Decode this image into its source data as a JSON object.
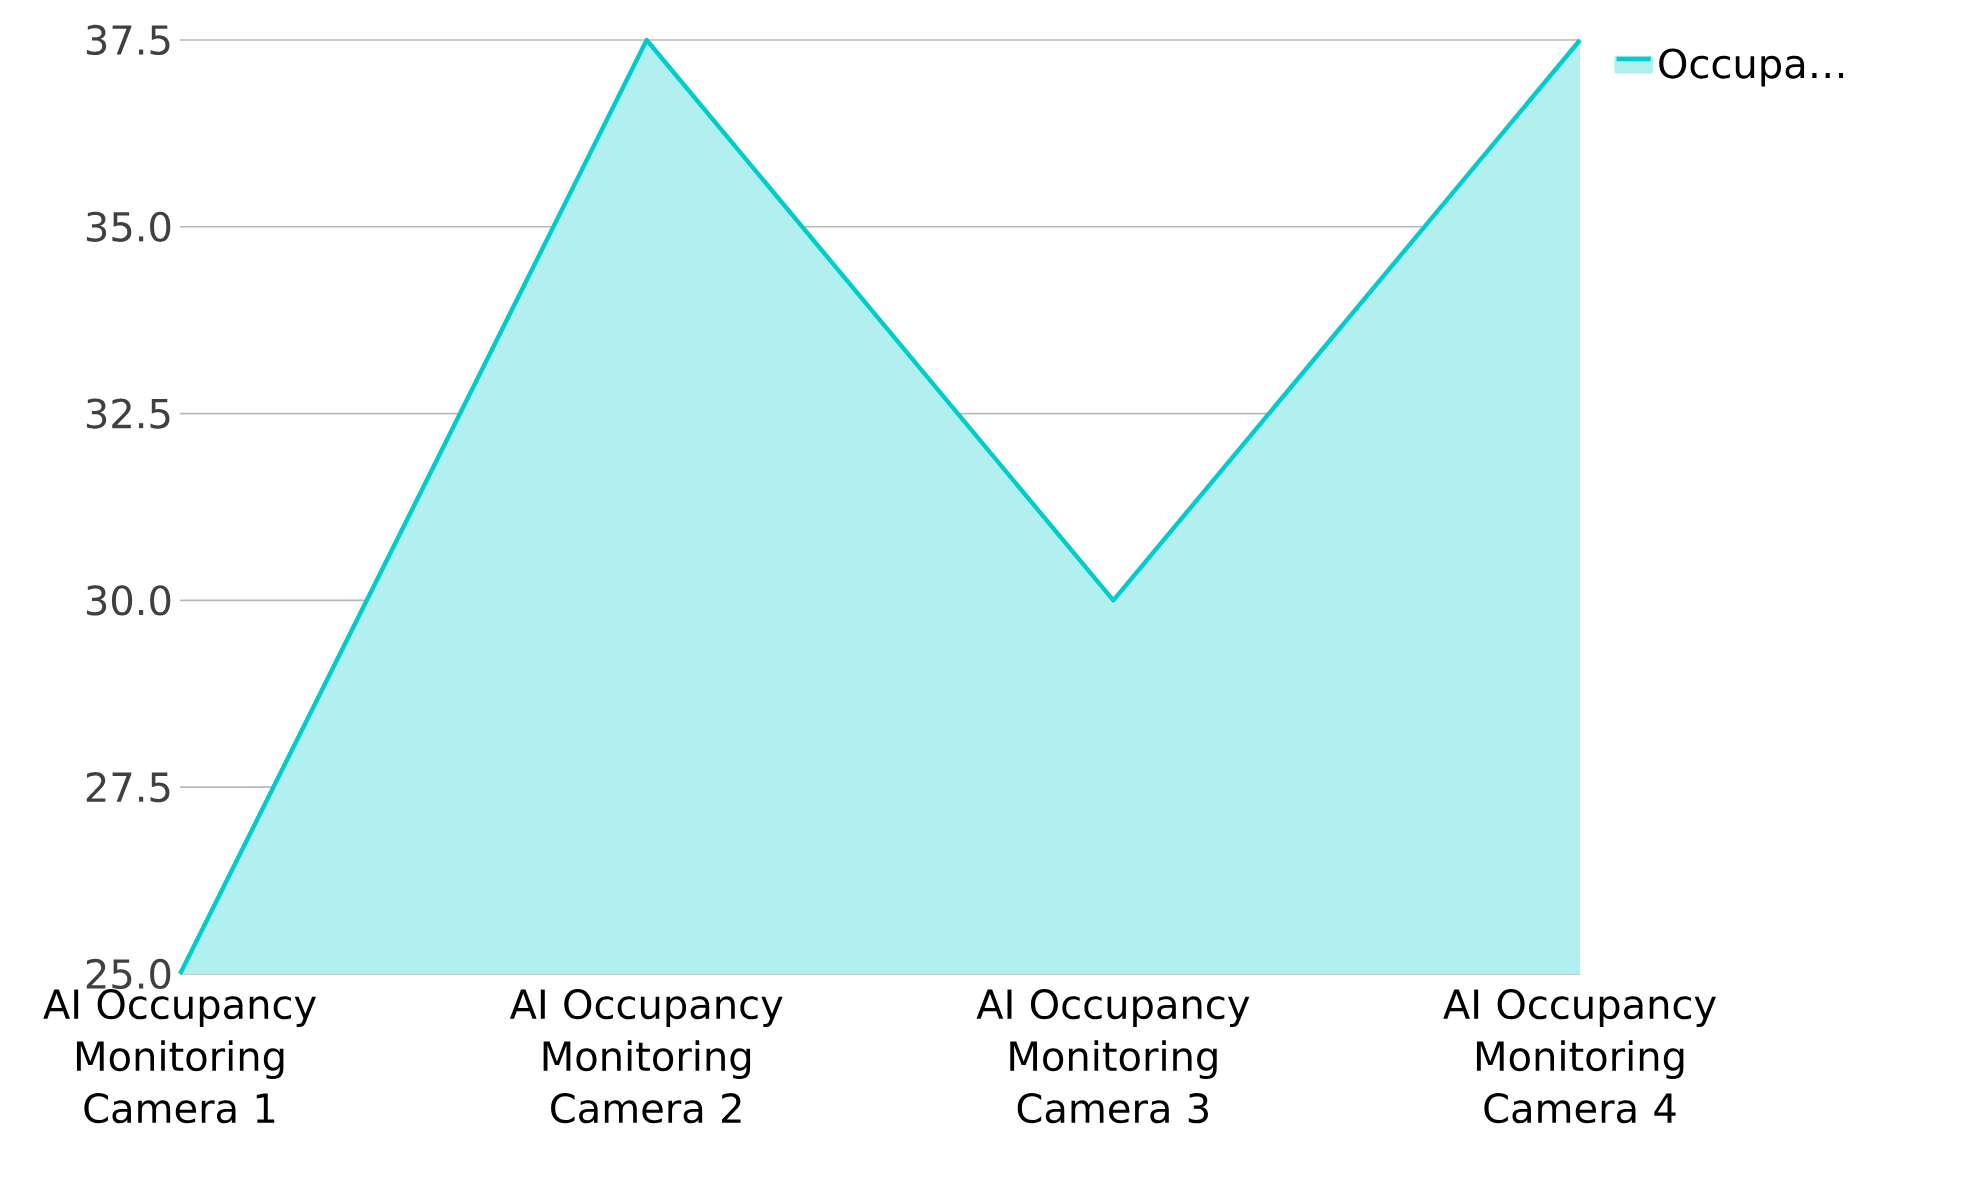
{
  "chart_data": {
    "type": "area",
    "categories": [
      "AI Occupancy Monitoring Camera 1",
      "AI Occupancy Monitoring Camera 2",
      "AI Occupancy Monitoring Camera 3",
      "AI Occupancy Monitoring Camera 4"
    ],
    "series": [
      {
        "name": "Occupa…",
        "color": "#00cccc",
        "values": [
          25,
          37.5,
          30,
          37.5
        ]
      }
    ],
    "ylim": [
      25,
      37.5
    ],
    "yticks": [
      {
        "value": 25,
        "label": "25.0"
      },
      {
        "value": 27.5,
        "label": "27.5"
      },
      {
        "value": 30,
        "label": "30.0"
      },
      {
        "value": 32.5,
        "label": "32.5"
      },
      {
        "value": 35,
        "label": "35.0"
      },
      {
        "value": 37.5,
        "label": "37.5"
      }
    ],
    "grid": "y",
    "legend": "top right"
  }
}
